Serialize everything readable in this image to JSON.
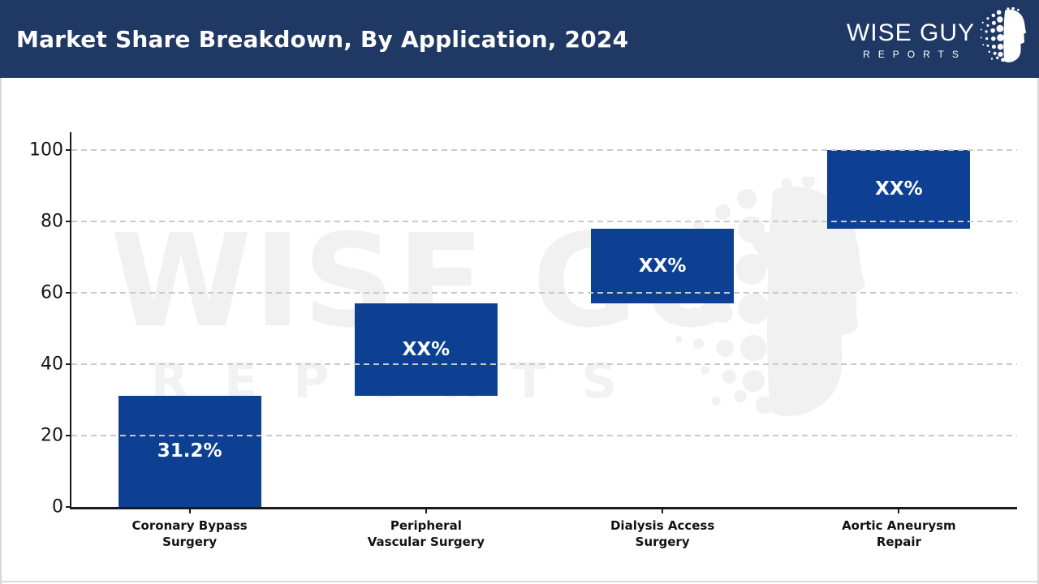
{
  "header": {
    "title": "Market Share Breakdown, By Application, 2024",
    "background_color": "#1f3864",
    "logo": {
      "line1": "WISE GUY",
      "line2": "REPORTS"
    }
  },
  "watermark": {
    "line1": "WISE GUY",
    "line2": "REPORTS"
  },
  "chart_data": {
    "type": "bar",
    "subtype": "waterfall",
    "title": "Market Share Breakdown, By Application, 2024",
    "categories": [
      "Coronary Bypass Surgery",
      "Peripheral Vascular Surgery",
      "Dialysis Access Surgery",
      "Aortic Aneurysm Repair"
    ],
    "category_label_lines": [
      [
        "Coronary Bypass",
        "Surgery"
      ],
      [
        "Peripheral",
        "Vascular Surgery"
      ],
      [
        "Dialysis Access",
        "Surgery"
      ],
      [
        "Aortic Aneurysm",
        "Repair"
      ]
    ],
    "segments": [
      {
        "category": "Coronary Bypass Surgery",
        "start": 0,
        "end": 31.2,
        "label": "31.2%"
      },
      {
        "category": "Peripheral Vascular Surgery",
        "start": 31.2,
        "end": 57,
        "label": "XX%"
      },
      {
        "category": "Dialysis Access Surgery",
        "start": 57,
        "end": 78,
        "label": "XX%"
      },
      {
        "category": "Aortic Aneurysm Repair",
        "start": 78,
        "end": 100,
        "label": "XX%"
      }
    ],
    "ylim": [
      0,
      100
    ],
    "yticks": [
      0,
      20,
      40,
      60,
      80,
      100
    ],
    "grid": "horizontal-dashed",
    "legend": "none",
    "bar_color": "#0d4092",
    "bar_label_color": "#ffffff",
    "axis_color": "#1a1a1a"
  }
}
